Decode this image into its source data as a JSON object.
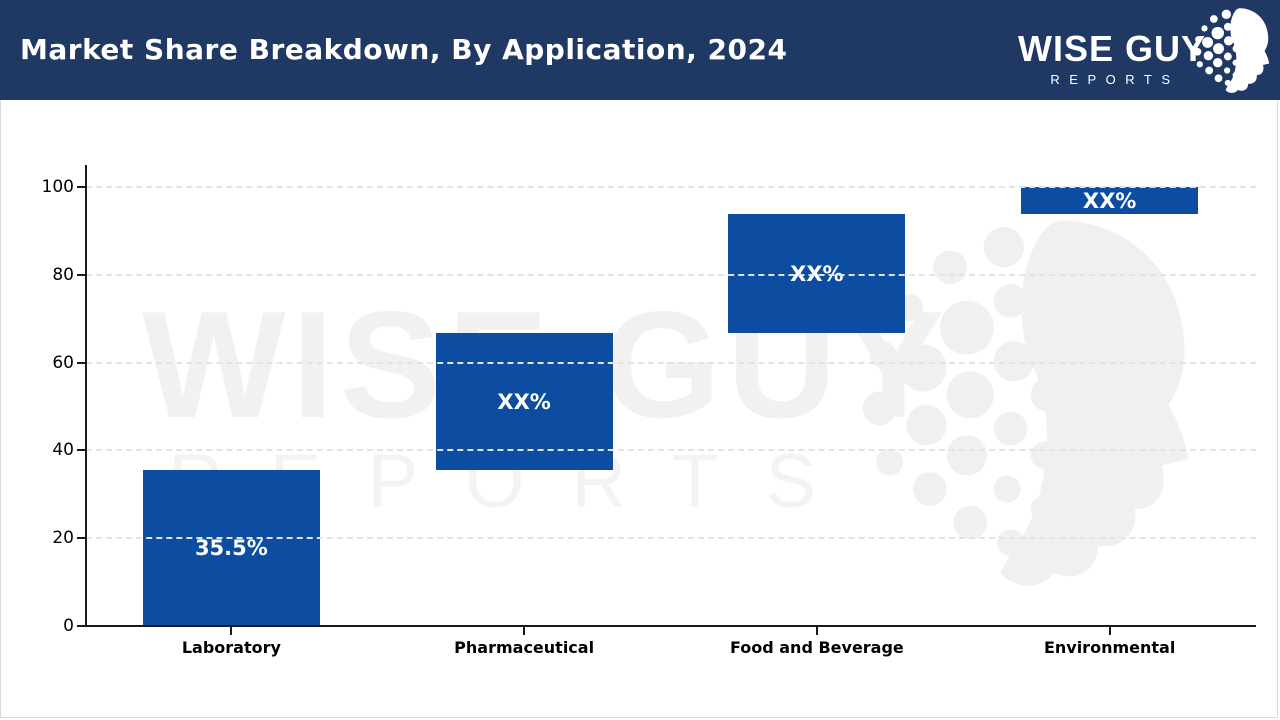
{
  "header": {
    "title": "Market Share Breakdown, By Application, 2024",
    "logo": {
      "brand": "WISE GUY",
      "tagline": "REPORTS"
    }
  },
  "watermark": {
    "brand": "WISE GUY",
    "tagline": "REPORTS"
  },
  "chart_data": {
    "type": "bar",
    "subtype": "waterfall",
    "title": "Market Share Breakdown, By Application, 2024",
    "categories": [
      "Laboratory",
      "Pharmaceutical",
      "Food and Beverage",
      "Environmental"
    ],
    "segments": [
      {
        "category": "Laboratory",
        "start": 0,
        "end": 35.5,
        "label": "35.5%"
      },
      {
        "category": "Pharmaceutical",
        "start": 35.5,
        "end": 66.7,
        "label": "XX%"
      },
      {
        "category": "Food and Beverage",
        "start": 66.7,
        "end": 93.8,
        "label": "XX%"
      },
      {
        "category": "Environmental",
        "start": 93.8,
        "end": 100,
        "label": "XX%"
      }
    ],
    "xlabel": "",
    "ylabel": "",
    "ylim": [
      0,
      100
    ],
    "yticks": [
      0,
      20,
      40,
      60,
      80,
      100
    ],
    "grid": "horizontal-dashed",
    "legend": "none",
    "colors": {
      "bar": "#0d4da1",
      "bar_label": "#ffffff",
      "axis": "#1a1a1a",
      "grid": "#e3e3e3",
      "header_bg": "#1f3864",
      "watermark": "#f1f1f1"
    }
  }
}
